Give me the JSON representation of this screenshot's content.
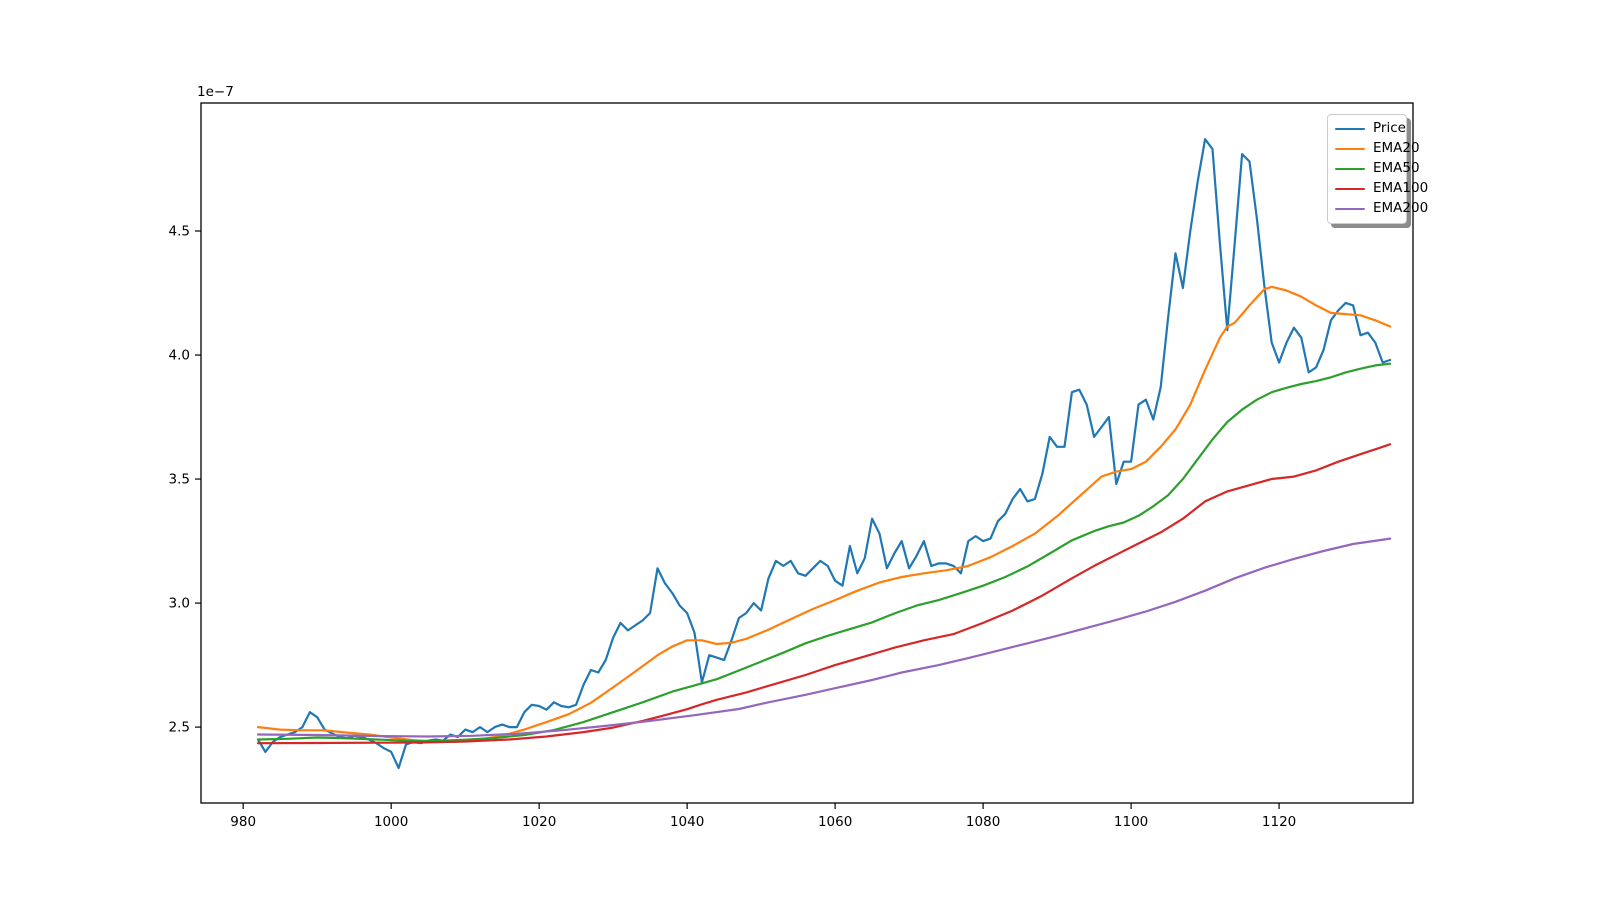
{
  "chart_data": {
    "type": "line",
    "title": "",
    "xlabel": "",
    "ylabel": "",
    "offset_text": "1e−7",
    "value_scale_note": "y values are in units of 1e-7",
    "xlim": [
      974.3,
      1138.1
    ],
    "ylim": [
      2.194,
      5.016
    ],
    "xticks": [
      980,
      1000,
      1020,
      1040,
      1060,
      1080,
      1100,
      1120
    ],
    "xtick_labels": [
      "980",
      "1000",
      "1020",
      "1040",
      "1060",
      "1080",
      "1100",
      "1120"
    ],
    "yticks": [
      2.5,
      3.0,
      3.5,
      4.0,
      4.5
    ],
    "ytick_labels": [
      "2.5",
      "3.0",
      "3.5",
      "4.0",
      "4.5"
    ],
    "grid": false,
    "legend": {
      "position": "upper right",
      "entries": [
        {
          "label": "Price",
          "color": "#1f77b4"
        },
        {
          "label": "EMA20",
          "color": "#ff7f0e"
        },
        {
          "label": "EMA50",
          "color": "#2ca02c"
        },
        {
          "label": "EMA100",
          "color": "#d62728"
        },
        {
          "label": "EMA200",
          "color": "#9467bd"
        }
      ]
    },
    "series": [
      {
        "name": "Price",
        "color": "#1f77b4",
        "x_start": 982,
        "x_step": 1,
        "values": [
          2.45,
          2.4,
          2.44,
          2.46,
          2.47,
          2.48,
          2.5,
          2.56,
          2.54,
          2.49,
          2.475,
          2.46,
          2.455,
          2.465,
          2.46,
          2.45,
          2.435,
          2.415,
          2.4,
          2.335,
          2.43,
          2.44,
          2.435,
          2.445,
          2.45,
          2.445,
          2.47,
          2.46,
          2.49,
          2.48,
          2.5,
          2.48,
          2.5,
          2.51,
          2.5,
          2.5,
          2.56,
          2.59,
          2.585,
          2.57,
          2.6,
          2.585,
          2.58,
          2.59,
          2.67,
          2.73,
          2.72,
          2.77,
          2.86,
          2.92,
          2.89,
          2.91,
          2.93,
          2.96,
          3.14,
          3.08,
          3.04,
          2.99,
          2.96,
          2.88,
          2.68,
          2.79,
          2.78,
          2.77,
          2.85,
          2.94,
          2.96,
          3.0,
          2.97,
          3.1,
          3.17,
          3.15,
          3.17,
          3.12,
          3.11,
          3.14,
          3.17,
          3.15,
          3.09,
          3.07,
          3.23,
          3.12,
          3.18,
          3.34,
          3.28,
          3.14,
          3.2,
          3.25,
          3.14,
          3.19,
          3.25,
          3.15,
          3.16,
          3.16,
          3.15,
          3.12,
          3.25,
          3.27,
          3.25,
          3.26,
          3.33,
          3.36,
          3.42,
          3.46,
          3.41,
          3.42,
          3.52,
          3.67,
          3.63,
          3.63,
          3.85,
          3.86,
          3.8,
          3.67,
          3.71,
          3.75,
          3.48,
          3.57,
          3.57,
          3.8,
          3.82,
          3.74,
          3.87,
          4.15,
          4.41,
          4.27,
          4.5,
          4.7,
          4.87,
          4.83,
          4.45,
          4.1,
          4.45,
          4.81,
          4.78,
          4.55,
          4.28,
          4.05,
          3.97,
          4.05,
          4.11,
          4.07,
          3.93,
          3.95,
          4.02,
          4.14,
          4.18,
          4.21,
          4.2,
          4.08,
          4.09,
          4.05,
          3.97,
          3.98
        ]
      },
      {
        "name": "EMA20",
        "color": "#ff7f0e",
        "points": [
          [
            982,
            2.5
          ],
          [
            985,
            2.49
          ],
          [
            988,
            2.487
          ],
          [
            991,
            2.487
          ],
          [
            994,
            2.478
          ],
          [
            997,
            2.47
          ],
          [
            1000,
            2.458
          ],
          [
            1003,
            2.447
          ],
          [
            1006,
            2.44
          ],
          [
            1009,
            2.441
          ],
          [
            1012,
            2.45
          ],
          [
            1015,
            2.465
          ],
          [
            1018,
            2.49
          ],
          [
            1021,
            2.52
          ],
          [
            1024,
            2.552
          ],
          [
            1027,
            2.598
          ],
          [
            1030,
            2.66
          ],
          [
            1033,
            2.724
          ],
          [
            1036,
            2.79
          ],
          [
            1038,
            2.825
          ],
          [
            1040,
            2.85
          ],
          [
            1042,
            2.85
          ],
          [
            1044,
            2.835
          ],
          [
            1046,
            2.84
          ],
          [
            1048,
            2.856
          ],
          [
            1051,
            2.893
          ],
          [
            1054,
            2.935
          ],
          [
            1057,
            2.976
          ],
          [
            1060,
            3.012
          ],
          [
            1063,
            3.05
          ],
          [
            1066,
            3.083
          ],
          [
            1069,
            3.105
          ],
          [
            1072,
            3.12
          ],
          [
            1075,
            3.132
          ],
          [
            1078,
            3.15
          ],
          [
            1081,
            3.185
          ],
          [
            1084,
            3.23
          ],
          [
            1087,
            3.28
          ],
          [
            1090,
            3.35
          ],
          [
            1093,
            3.43
          ],
          [
            1096,
            3.51
          ],
          [
            1098,
            3.53
          ],
          [
            1100,
            3.54
          ],
          [
            1102,
            3.57
          ],
          [
            1104,
            3.63
          ],
          [
            1106,
            3.7
          ],
          [
            1108,
            3.8
          ],
          [
            1110,
            3.94
          ],
          [
            1112,
            4.07
          ],
          [
            1113,
            4.115
          ],
          [
            1114,
            4.13
          ],
          [
            1116,
            4.2
          ],
          [
            1118,
            4.265
          ],
          [
            1119,
            4.275
          ],
          [
            1121,
            4.26
          ],
          [
            1123,
            4.235
          ],
          [
            1125,
            4.2
          ],
          [
            1127,
            4.17
          ],
          [
            1129,
            4.165
          ],
          [
            1131,
            4.16
          ],
          [
            1133,
            4.14
          ],
          [
            1135,
            4.115
          ]
        ]
      },
      {
        "name": "EMA50",
        "color": "#2ca02c",
        "points": [
          [
            982,
            2.45
          ],
          [
            986,
            2.453
          ],
          [
            990,
            2.458
          ],
          [
            994,
            2.455
          ],
          [
            998,
            2.45
          ],
          [
            1002,
            2.445
          ],
          [
            1006,
            2.444
          ],
          [
            1010,
            2.449
          ],
          [
            1014,
            2.456
          ],
          [
            1018,
            2.468
          ],
          [
            1022,
            2.488
          ],
          [
            1026,
            2.52
          ],
          [
            1030,
            2.56
          ],
          [
            1034,
            2.6
          ],
          [
            1038,
            2.643
          ],
          [
            1041,
            2.668
          ],
          [
            1044,
            2.693
          ],
          [
            1047,
            2.728
          ],
          [
            1050,
            2.764
          ],
          [
            1053,
            2.8
          ],
          [
            1056,
            2.838
          ],
          [
            1059,
            2.868
          ],
          [
            1062,
            2.895
          ],
          [
            1065,
            2.922
          ],
          [
            1068,
            2.958
          ],
          [
            1071,
            2.99
          ],
          [
            1074,
            3.012
          ],
          [
            1077,
            3.04
          ],
          [
            1080,
            3.07
          ],
          [
            1083,
            3.105
          ],
          [
            1086,
            3.148
          ],
          [
            1089,
            3.2
          ],
          [
            1092,
            3.253
          ],
          [
            1095,
            3.29
          ],
          [
            1097,
            3.31
          ],
          [
            1099,
            3.325
          ],
          [
            1101,
            3.352
          ],
          [
            1103,
            3.39
          ],
          [
            1105,
            3.435
          ],
          [
            1107,
            3.5
          ],
          [
            1109,
            3.58
          ],
          [
            1111,
            3.66
          ],
          [
            1113,
            3.73
          ],
          [
            1115,
            3.78
          ],
          [
            1117,
            3.82
          ],
          [
            1119,
            3.85
          ],
          [
            1121,
            3.868
          ],
          [
            1123,
            3.883
          ],
          [
            1125,
            3.895
          ],
          [
            1127,
            3.91
          ],
          [
            1129,
            3.93
          ],
          [
            1131,
            3.945
          ],
          [
            1133,
            3.958
          ],
          [
            1135,
            3.965
          ]
        ]
      },
      {
        "name": "EMA100",
        "color": "#d62728",
        "points": [
          [
            982,
            2.435
          ],
          [
            990,
            2.436
          ],
          [
            998,
            2.437
          ],
          [
            1004,
            2.438
          ],
          [
            1010,
            2.442
          ],
          [
            1016,
            2.45
          ],
          [
            1021,
            2.462
          ],
          [
            1026,
            2.48
          ],
          [
            1030,
            2.498
          ],
          [
            1034,
            2.525
          ],
          [
            1037,
            2.548
          ],
          [
            1040,
            2.572
          ],
          [
            1042,
            2.592
          ],
          [
            1044,
            2.61
          ],
          [
            1048,
            2.64
          ],
          [
            1052,
            2.675
          ],
          [
            1056,
            2.71
          ],
          [
            1060,
            2.75
          ],
          [
            1064,
            2.785
          ],
          [
            1068,
            2.82
          ],
          [
            1072,
            2.85
          ],
          [
            1076,
            2.875
          ],
          [
            1080,
            2.92
          ],
          [
            1084,
            2.97
          ],
          [
            1088,
            3.03
          ],
          [
            1092,
            3.1
          ],
          [
            1095,
            3.15
          ],
          [
            1098,
            3.195
          ],
          [
            1101,
            3.24
          ],
          [
            1104,
            3.285
          ],
          [
            1107,
            3.34
          ],
          [
            1110,
            3.41
          ],
          [
            1113,
            3.45
          ],
          [
            1116,
            3.475
          ],
          [
            1119,
            3.5
          ],
          [
            1122,
            3.51
          ],
          [
            1125,
            3.535
          ],
          [
            1128,
            3.57
          ],
          [
            1131,
            3.6
          ],
          [
            1133,
            3.62
          ],
          [
            1135,
            3.64
          ]
        ]
      },
      {
        "name": "EMA200",
        "color": "#9467bd",
        "points": [
          [
            982,
            2.47
          ],
          [
            990,
            2.468
          ],
          [
            998,
            2.464
          ],
          [
            1005,
            2.462
          ],
          [
            1011,
            2.465
          ],
          [
            1017,
            2.473
          ],
          [
            1023,
            2.487
          ],
          [
            1029,
            2.505
          ],
          [
            1035,
            2.525
          ],
          [
            1041,
            2.548
          ],
          [
            1047,
            2.573
          ],
          [
            1051,
            2.6
          ],
          [
            1056,
            2.63
          ],
          [
            1060,
            2.657
          ],
          [
            1065,
            2.69
          ],
          [
            1069,
            2.72
          ],
          [
            1074,
            2.75
          ],
          [
            1078,
            2.778
          ],
          [
            1082,
            2.808
          ],
          [
            1086,
            2.838
          ],
          [
            1090,
            2.868
          ],
          [
            1094,
            2.9
          ],
          [
            1098,
            2.932
          ],
          [
            1102,
            2.966
          ],
          [
            1106,
            3.005
          ],
          [
            1110,
            3.05
          ],
          [
            1114,
            3.1
          ],
          [
            1118,
            3.142
          ],
          [
            1122,
            3.178
          ],
          [
            1126,
            3.21
          ],
          [
            1130,
            3.238
          ],
          [
            1135,
            3.26
          ]
        ]
      }
    ]
  }
}
